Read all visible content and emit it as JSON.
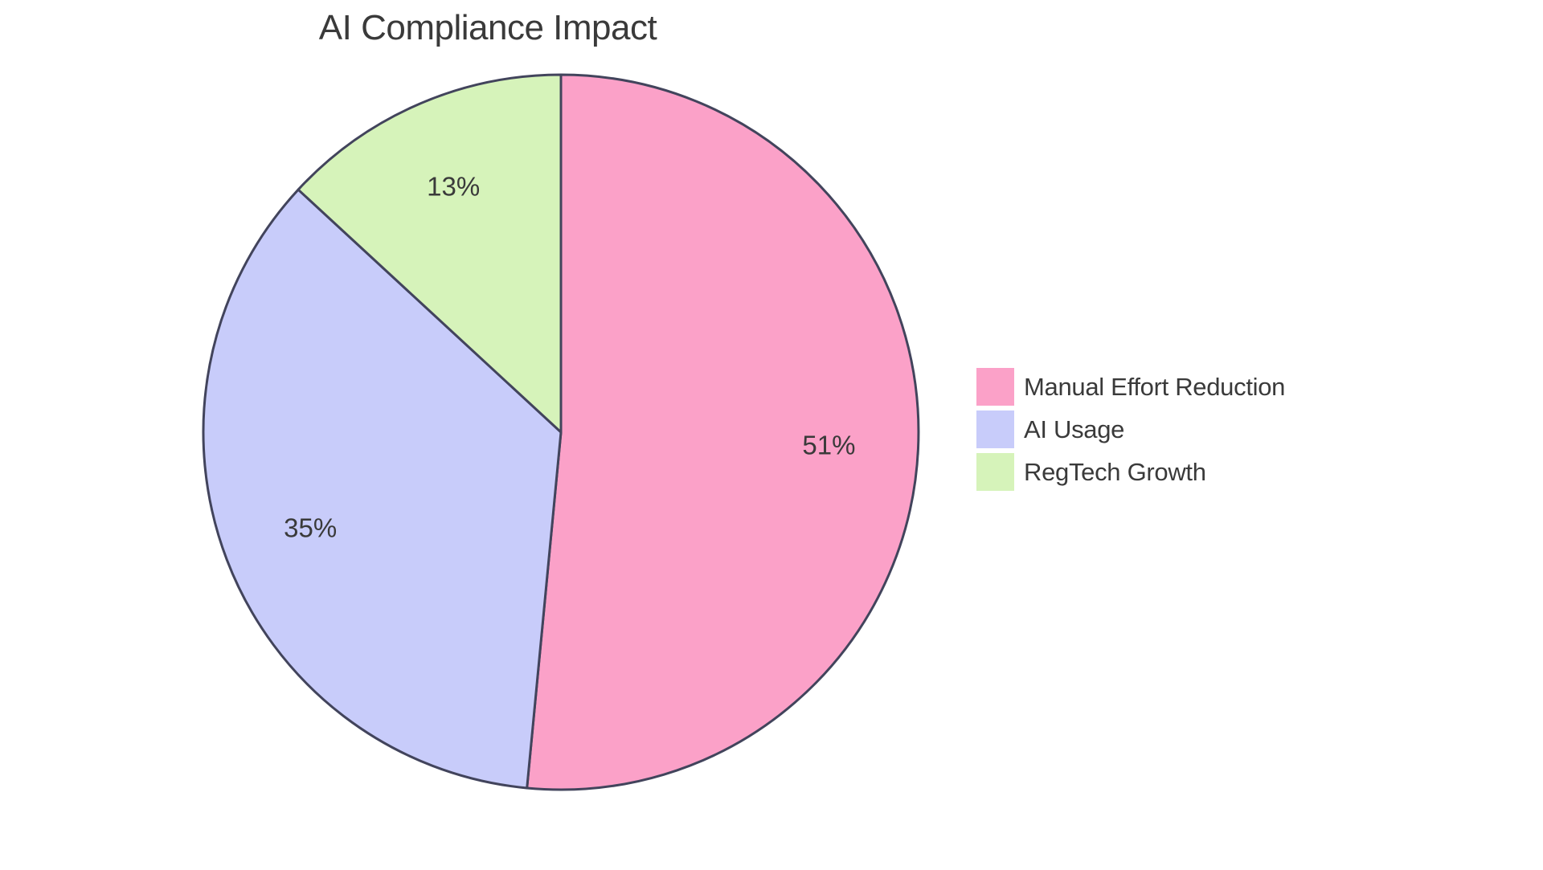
{
  "canvas": {
    "background_color": "#FFFFFF"
  },
  "chart_data": {
    "type": "pie",
    "title": "AI Compliance Impact",
    "slices": [
      {
        "label": "Manual Effort Reduction",
        "value": 51,
        "display_label": "51%",
        "color": "#FBA1C8"
      },
      {
        "label": "AI Usage",
        "value": 35,
        "display_label": "35%",
        "color": "#C8CCFA"
      },
      {
        "label": "RegTech Growth",
        "value": 13,
        "display_label": "13%",
        "color": "#D6F3BA"
      }
    ],
    "start_angle": "12-oclock",
    "direction": "clockwise",
    "stroke_color": "#42445C",
    "stroke_width": 3,
    "title_color": "#3A3A3A",
    "slice_label_color": "#3A3A3A",
    "legend_position": "right",
    "legend_text_color": "#3A3A3A",
    "grid": "off"
  }
}
